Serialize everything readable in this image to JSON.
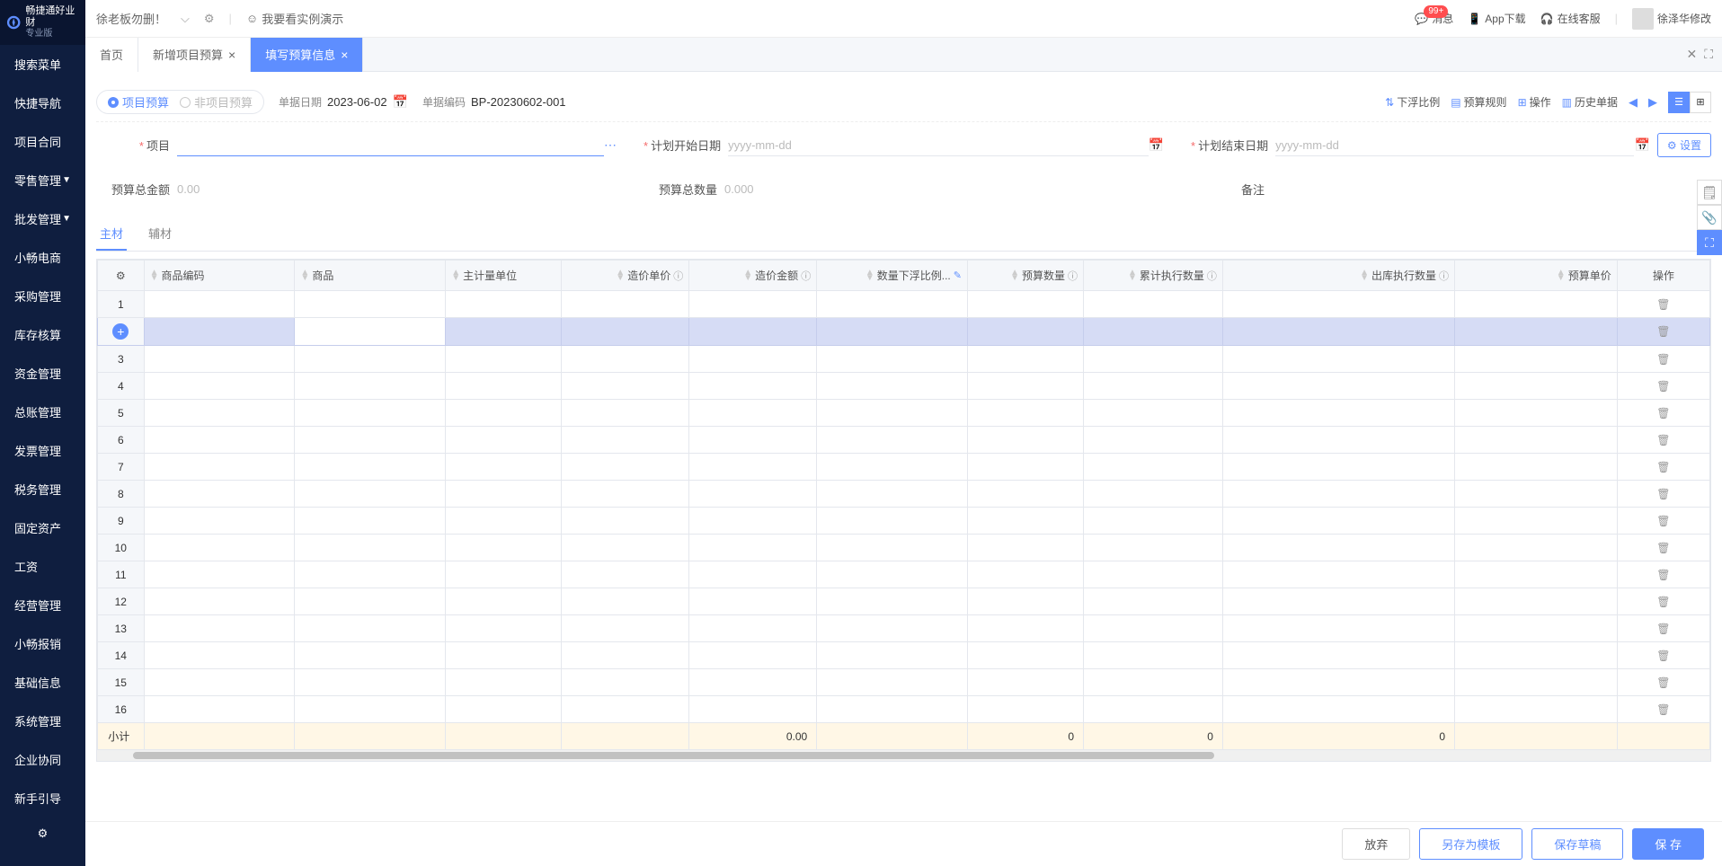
{
  "logo": {
    "name": "畅捷通好业财",
    "edition": "专业版"
  },
  "sidebar": {
    "items": [
      {
        "label": "搜索菜单",
        "hasCaret": false
      },
      {
        "label": "快捷导航",
        "hasCaret": false
      },
      {
        "label": "项目合同",
        "hasCaret": false
      },
      {
        "label": "零售管理",
        "hasCaret": true
      },
      {
        "label": "批发管理",
        "hasCaret": true
      },
      {
        "label": "小畅电商",
        "hasCaret": false
      },
      {
        "label": "采购管理",
        "hasCaret": false
      },
      {
        "label": "库存核算",
        "hasCaret": false
      },
      {
        "label": "资金管理",
        "hasCaret": false
      },
      {
        "label": "总账管理",
        "hasCaret": false
      },
      {
        "label": "发票管理",
        "hasCaret": false
      },
      {
        "label": "税务管理",
        "hasCaret": false
      },
      {
        "label": "固定资产",
        "hasCaret": false
      },
      {
        "label": "工资",
        "hasCaret": false
      },
      {
        "label": "经营管理",
        "hasCaret": false
      },
      {
        "label": "小畅报销",
        "hasCaret": false
      },
      {
        "label": "基础信息",
        "hasCaret": false
      },
      {
        "label": "系统管理",
        "hasCaret": false
      },
      {
        "label": "企业协同",
        "hasCaret": false
      },
      {
        "label": "新手引导",
        "hasCaret": false
      }
    ]
  },
  "topbar": {
    "notice": "徐老板勿删！",
    "demoLink": "我要看实例演示",
    "messages": {
      "label": "消息",
      "badge": "99+"
    },
    "appDownload": "App下载",
    "onlineService": "在线客服",
    "username": "徐泽华修改"
  },
  "tabs": [
    {
      "label": "首页",
      "closable": false,
      "active": false
    },
    {
      "label": "新增项目预算",
      "closable": true,
      "active": false
    },
    {
      "label": "填写预算信息",
      "closable": true,
      "active": true
    }
  ],
  "radios": {
    "projectBudget": "项目预算",
    "nonProjectBudget": "非项目预算"
  },
  "headerFields": {
    "billDate": {
      "label": "单据日期",
      "value": "2023-06-02"
    },
    "billNo": {
      "label": "单据编码",
      "value": "BP-20230602-001"
    }
  },
  "headerActions": {
    "floatRatio": "下浮比例",
    "budgetRules": "预算规则",
    "operations": "操作",
    "historyBills": "历史单据"
  },
  "formFields": {
    "project": {
      "label": "项目"
    },
    "planStart": {
      "label": "计划开始日期",
      "placeholder": "yyyy-mm-dd"
    },
    "planEnd": {
      "label": "计划结束日期",
      "placeholder": "yyyy-mm-dd"
    },
    "settingsBtn": "设置",
    "budgetTotal": {
      "label": "预算总金额",
      "value": "0.00"
    },
    "budgetQty": {
      "label": "预算总数量",
      "value": "0.000"
    },
    "remark": {
      "label": "备注"
    }
  },
  "subTabs": {
    "main": "主材",
    "auxiliary": "辅材"
  },
  "table": {
    "columns": [
      "商品编码",
      "商品",
      "主计量单位",
      "造价单价",
      "造价金额",
      "数量下浮比例...",
      "预算数量",
      "累计执行数量",
      "出库执行数量",
      "预算单价",
      "操作"
    ],
    "rowCount": 16,
    "highlightedRow": 2,
    "subtotal": {
      "label": "小计",
      "costAmount": "0.00",
      "budgetQty": "0",
      "cumExecQty": "0",
      "outExecQty": "0"
    }
  },
  "footer": {
    "discard": "放弃",
    "saveAsTemplate": "另存为模板",
    "saveDraft": "保存草稿",
    "save": "保 存"
  },
  "colors": {
    "primary": "#5e8eff",
    "sidebar": "#0f1e3f",
    "highlight": "#d6dcf5",
    "subtotal": "#fff7e6",
    "danger": "#ff4d4f"
  }
}
